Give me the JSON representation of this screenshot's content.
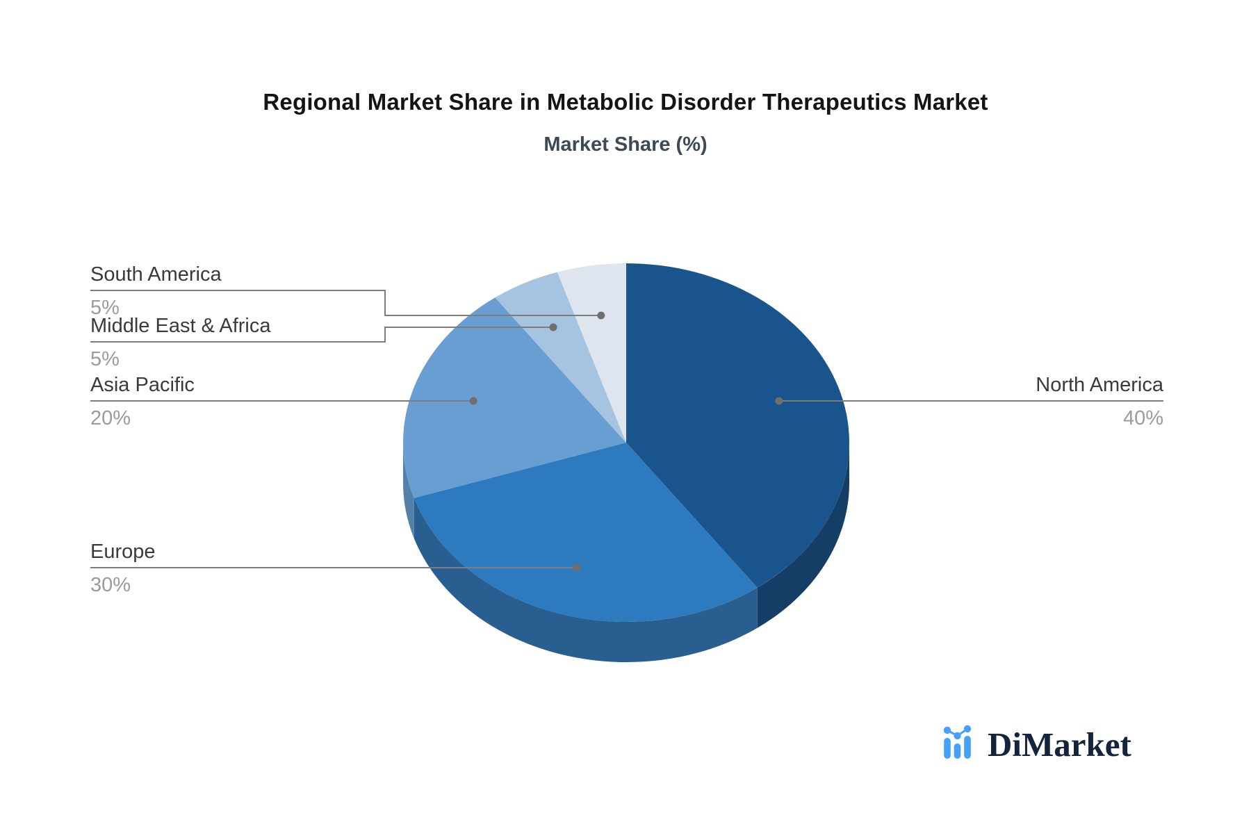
{
  "chart": {
    "title": "Regional Market Share in Metabolic Disorder Therapeutics Market",
    "subtitle": "Market Share (%)"
  },
  "chart_data": {
    "type": "pie",
    "style": "3d",
    "title": "Regional Market Share in Metabolic Disorder Therapeutics Market",
    "subtitle": "Market Share (%)",
    "unit": "%",
    "start_angle_deg": 0,
    "direction": "clockwise",
    "legend_position": "callout-labels",
    "series": [
      {
        "label": "North America",
        "value": 40,
        "display": "40%",
        "color": "#19558c",
        "side_color": "#143e66"
      },
      {
        "label": "Europe",
        "value": 30,
        "display": "30%",
        "color": "#2e7abe",
        "side_color": "#295f90"
      },
      {
        "label": "Asia Pacific",
        "value": 20,
        "display": "20%",
        "color": "#689ed2",
        "side_color": "#5480aa"
      },
      {
        "label": "Middle East & Africa",
        "value": 5,
        "display": "5%",
        "color": "#a6c4df",
        "side_color": "#8aa9c4"
      },
      {
        "label": "South America",
        "value": 5,
        "display": "5%",
        "color": "#dfe5ef",
        "side_color": "#c2cdda"
      }
    ]
  },
  "branding": {
    "logo_text": "DiMarket",
    "logo_icon": "bar-chart-trend-icon",
    "logo_text_color": "#14243c",
    "logo_icon_color": "#45a1f8"
  },
  "colors": {
    "background": "#ffffff",
    "title_text": "#141414",
    "subtitle_text": "#3f4858",
    "label_text": "#3a3a3a",
    "value_text": "#9b9b9b",
    "connector_line": "#7d7d7d",
    "connector_dot": "#6f6f6f"
  }
}
